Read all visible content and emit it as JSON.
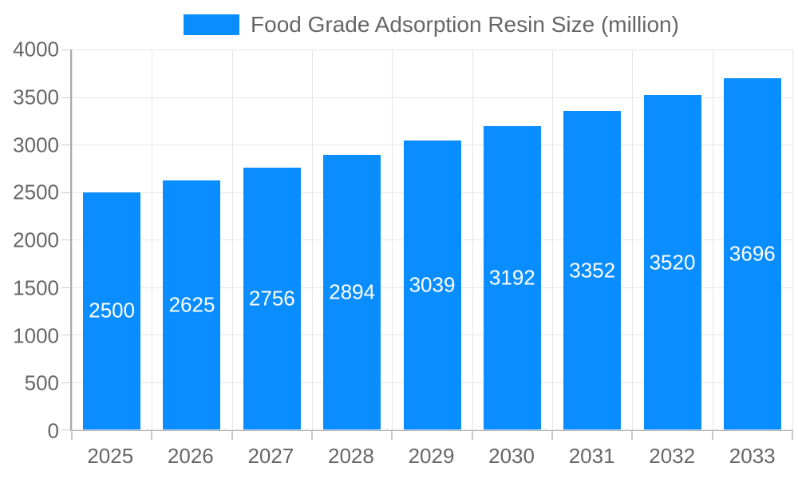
{
  "legend": {
    "label": "Food Grade Adsorption Resin Size (million)"
  },
  "colors": {
    "bar": "#0a8eff",
    "grid": "#e5e5e5",
    "axis": "#a9a9a9",
    "tick_text": "#666666",
    "legend_text": "#666666",
    "bar_label_text": "#ffffff",
    "background": "#ffffff"
  },
  "chart_data": {
    "type": "bar",
    "title": "Food Grade Adsorption Resin Size (million)",
    "categories": [
      "2025",
      "2026",
      "2027",
      "2028",
      "2029",
      "2030",
      "2031",
      "2032",
      "2033"
    ],
    "values": [
      2500,
      2625,
      2756,
      2894,
      3039,
      3192,
      3352,
      3520,
      3696
    ],
    "bar_labels": [
      "2500",
      "2625",
      "2756",
      "2894",
      "3039",
      "3192",
      "3352",
      "3520",
      "3696"
    ],
    "xlabel": "",
    "ylabel": "",
    "ylim": [
      0,
      4000
    ],
    "yticks": [
      0,
      500,
      1000,
      1500,
      2000,
      2500,
      3000,
      3500,
      4000
    ],
    "grid": true,
    "legend_position": "top",
    "value_label_position": "center-inside"
  }
}
